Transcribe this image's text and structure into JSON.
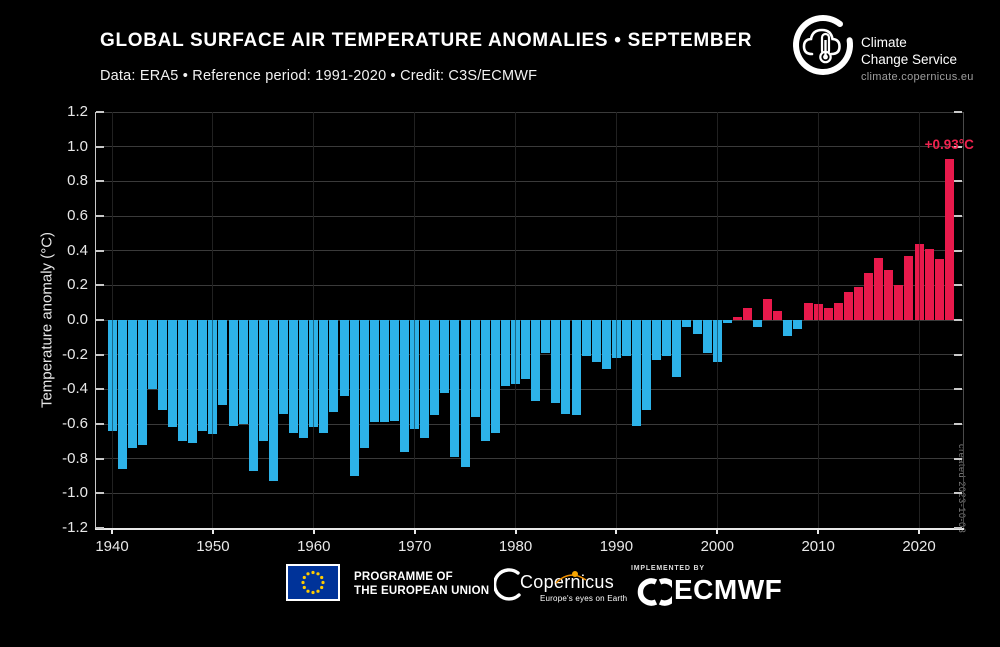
{
  "header": {
    "title": "GLOBAL SURFACE AIR TEMPERATURE ANOMALIES • SEPTEMBER",
    "subtitle": "Data: ERA5 • Reference period: 1991-2020 • Credit: C3S/ECMWF",
    "ccs": {
      "line1": "Climate",
      "line2": "Change Service",
      "url": "climate.copernicus.eu"
    }
  },
  "chart_data": {
    "type": "bar",
    "title": "GLOBAL SURFACE AIR TEMPERATURE ANOMALIES • SEPTEMBER",
    "xlabel": "",
    "ylabel": "Temperature anomaly (°C)",
    "ylim": [
      -1.2,
      1.2
    ],
    "ytick_step": 0.2,
    "xticks": [
      1940,
      1950,
      1960,
      1970,
      1980,
      1990,
      2000,
      2010,
      2020
    ],
    "grid": true,
    "years": [
      1940,
      1941,
      1942,
      1943,
      1944,
      1945,
      1946,
      1947,
      1948,
      1949,
      1950,
      1951,
      1952,
      1953,
      1954,
      1955,
      1956,
      1957,
      1958,
      1959,
      1960,
      1961,
      1962,
      1963,
      1964,
      1965,
      1966,
      1967,
      1968,
      1969,
      1970,
      1971,
      1972,
      1973,
      1974,
      1975,
      1976,
      1977,
      1978,
      1979,
      1980,
      1981,
      1982,
      1983,
      1984,
      1985,
      1986,
      1987,
      1988,
      1989,
      1990,
      1991,
      1992,
      1993,
      1994,
      1995,
      1996,
      1997,
      1998,
      1999,
      2000,
      2001,
      2002,
      2003,
      2004,
      2005,
      2006,
      2007,
      2008,
      2009,
      2010,
      2011,
      2012,
      2013,
      2014,
      2015,
      2016,
      2017,
      2018,
      2019,
      2020,
      2021,
      2022,
      2023
    ],
    "values": [
      -0.64,
      -0.86,
      -0.74,
      -0.72,
      -0.4,
      -0.52,
      -0.62,
      -0.7,
      -0.71,
      -0.64,
      -0.66,
      -0.49,
      -0.61,
      -0.6,
      -0.87,
      -0.7,
      -0.93,
      -0.54,
      -0.65,
      -0.68,
      -0.62,
      -0.65,
      -0.53,
      -0.44,
      -0.9,
      -0.74,
      -0.59,
      -0.59,
      -0.58,
      -0.76,
      -0.63,
      -0.68,
      -0.55,
      -0.42,
      -0.79,
      -0.85,
      -0.56,
      -0.7,
      -0.65,
      -0.38,
      -0.37,
      -0.34,
      -0.47,
      -0.19,
      -0.48,
      -0.54,
      -0.55,
      -0.21,
      -0.24,
      -0.28,
      -0.22,
      -0.21,
      -0.61,
      -0.52,
      -0.23,
      -0.21,
      -0.33,
      -0.04,
      -0.08,
      -0.19,
      -0.24,
      -0.02,
      0.02,
      0.07,
      -0.04,
      0.12,
      0.05,
      -0.09,
      -0.05,
      0.1,
      0.09,
      0.07,
      0.1,
      0.16,
      0.19,
      0.27,
      0.36,
      0.29,
      0.2,
      0.37,
      0.44,
      0.41,
      0.35,
      0.93
    ],
    "annotation": {
      "text": "+0.93°C",
      "year": 2023,
      "value": 0.93
    },
    "colors": {
      "positive": "#e8194b",
      "negative": "#2db2e8",
      "annotation": "#f0234f"
    }
  },
  "watermark": "created 2023-10-03",
  "footer": {
    "eu": {
      "line1": "PROGRAMME OF",
      "line2": "THE EUROPEAN UNION"
    },
    "copernicus": {
      "wordmark": "Copernicus",
      "tagline": "Europe's eyes on Earth"
    },
    "ecmwf": {
      "implemented_by": "IMPLEMENTED BY",
      "name": "ECMWF"
    }
  }
}
